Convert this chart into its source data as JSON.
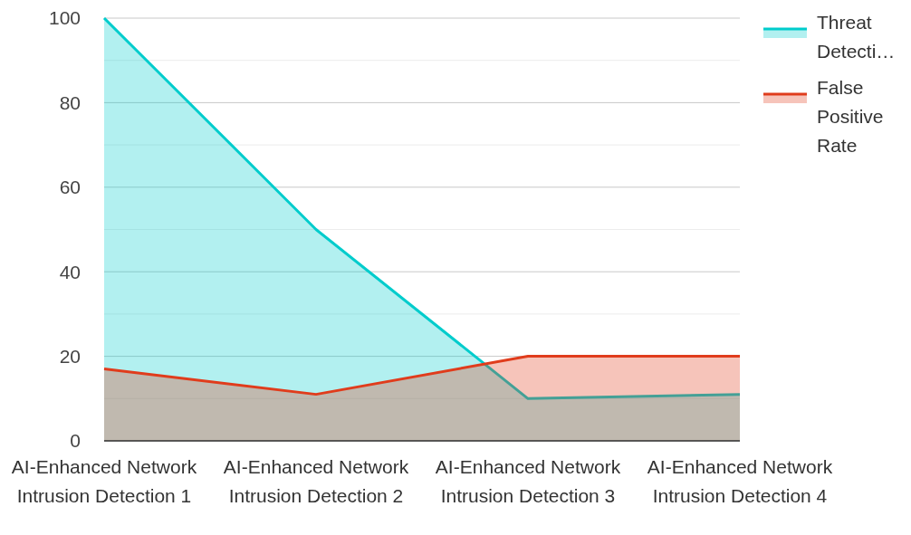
{
  "chart_data": {
    "type": "area",
    "categories": [
      "AI-Enhanced Network Intrusion Detection 1",
      "AI-Enhanced Network Intrusion Detection 2",
      "AI-Enhanced Network Intrusion Detection 3",
      "AI-Enhanced Network Intrusion Detection 4"
    ],
    "series": [
      {
        "name": "Threat Detecti…",
        "color": "#00cccc",
        "values": [
          100,
          50,
          10,
          11
        ]
      },
      {
        "name": "False Positive Rate",
        "color": "#e03c1c",
        "values": [
          17,
          11,
          20,
          20
        ]
      }
    ],
    "ylim": [
      0,
      100
    ],
    "yticks": [
      0,
      {
        "value": 10,
        "label": null
      },
      20,
      {
        "value": 30,
        "label": null
      },
      40,
      {
        "value": 50,
        "label": null
      },
      60,
      {
        "value": 70,
        "label": null
      },
      80,
      {
        "value": 90,
        "label": null
      },
      100
    ],
    "grid": "y",
    "legend": "right"
  }
}
